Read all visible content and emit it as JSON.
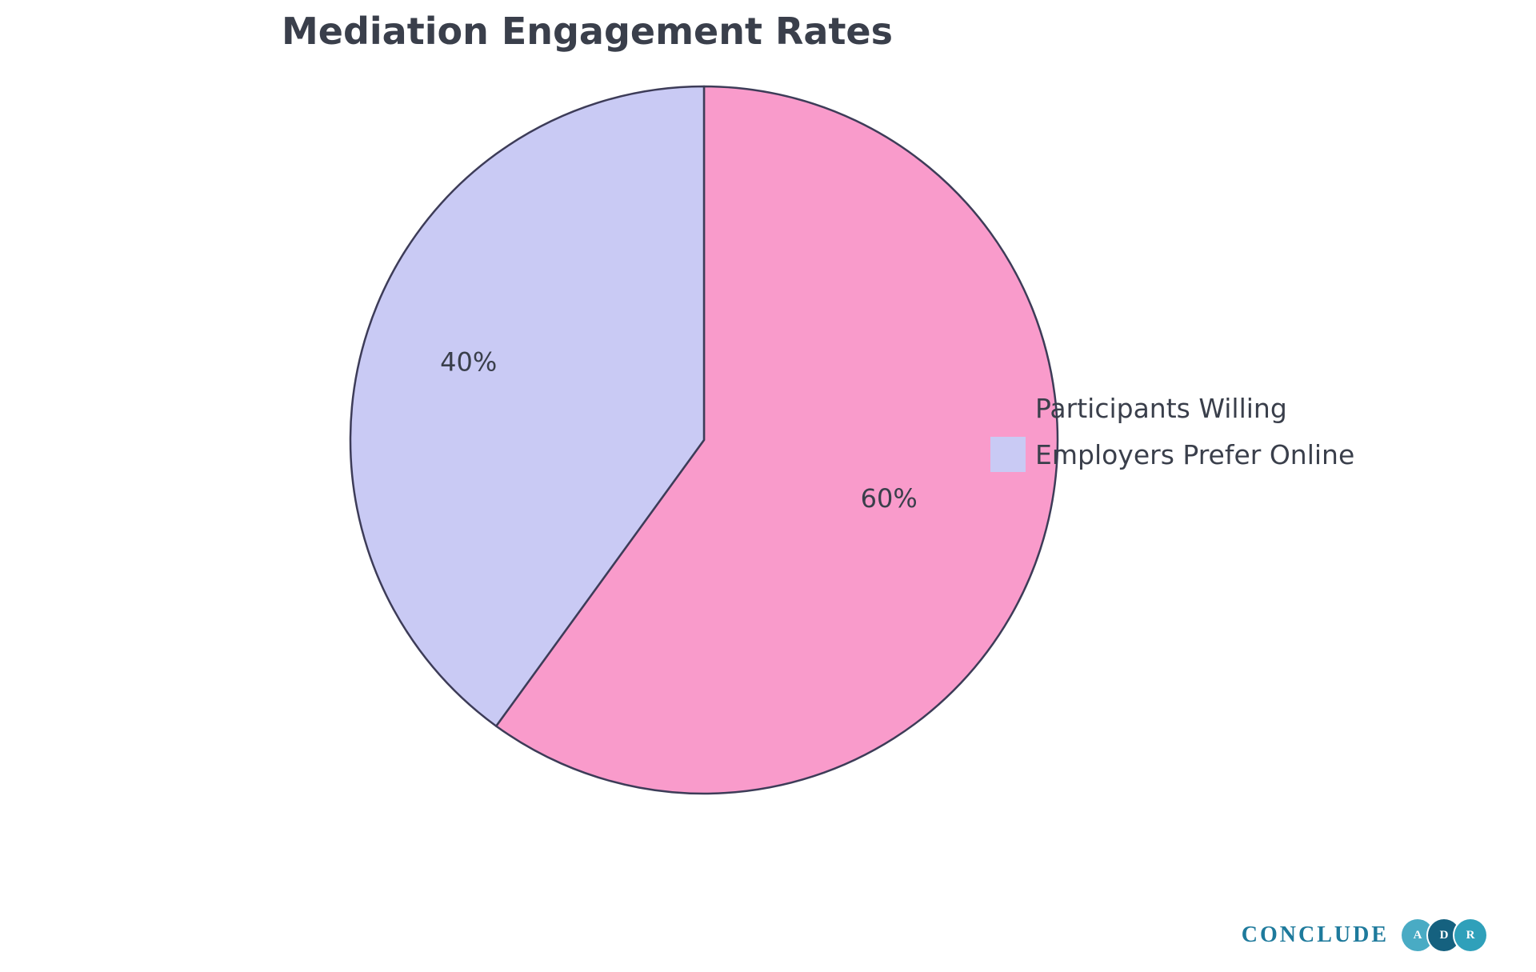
{
  "chart_data": {
    "type": "pie",
    "title": "Mediation Engagement Rates",
    "slices": [
      {
        "label": "Participants Willing",
        "value": 60,
        "pct_label": "60%",
        "color": "#F99BCB",
        "label_radius": 0.55
      },
      {
        "label": "Employers Prefer Online",
        "value": 40,
        "pct_label": "40%",
        "color": "#C9CAF4",
        "label_radius": 0.7
      }
    ],
    "start_angle_deg": 0,
    "direction": "clockwise",
    "stroke_color": "#3D3C58",
    "stroke_width": 2.5,
    "label_color": "#3A3F4B",
    "label_font_size": 32,
    "legend_position": "right",
    "grid": false
  },
  "branding": {
    "wordmark": "CONCLUDE",
    "wordmark_color": "#1E7A9C",
    "badges": [
      {
        "letter": "A",
        "color": "#49ABC4"
      },
      {
        "letter": "D",
        "color": "#15617F"
      },
      {
        "letter": "R",
        "color": "#2FA0BA"
      }
    ]
  }
}
